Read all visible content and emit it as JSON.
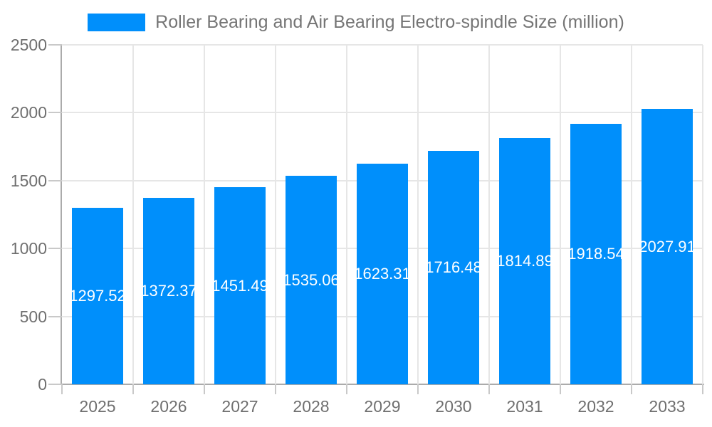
{
  "legend": {
    "label": "Roller Bearing and Air Bearing Electro-spindle Size (million)"
  },
  "colors": {
    "bar": "#008FFB",
    "grid": "#e6e6e6",
    "axis_line": "#ababab",
    "tick": "#c9c9c9",
    "axis_label": "#6f6f6f",
    "legend_text": "#757575",
    "bar_label": "#ffffff",
    "background": "#ffffff"
  },
  "chart_data": {
    "type": "bar",
    "title": "Roller Bearing and Air Bearing Electro-spindle Size (million)",
    "categories": [
      "2025",
      "2026",
      "2027",
      "2028",
      "2029",
      "2030",
      "2031",
      "2032",
      "2033"
    ],
    "values": [
      1297.52,
      1372.37,
      1451.49,
      1535.06,
      1623.31,
      1716.48,
      1814.89,
      1918.54,
      2027.91
    ],
    "value_labels": [
      "1297.52",
      "1372.37",
      "1451.49",
      "1535.06",
      "1623.31",
      "1716.48",
      "1814.89",
      "1918.54",
      "2027.91"
    ],
    "xlabel": "",
    "ylabel": "",
    "ylim": [
      0,
      2500
    ],
    "yticks": [
      0,
      500,
      1000,
      1500,
      2000,
      2500
    ],
    "grid": true,
    "legend_position": "top",
    "bar_color": "#008FFB",
    "value_label_position": "inside-center"
  }
}
